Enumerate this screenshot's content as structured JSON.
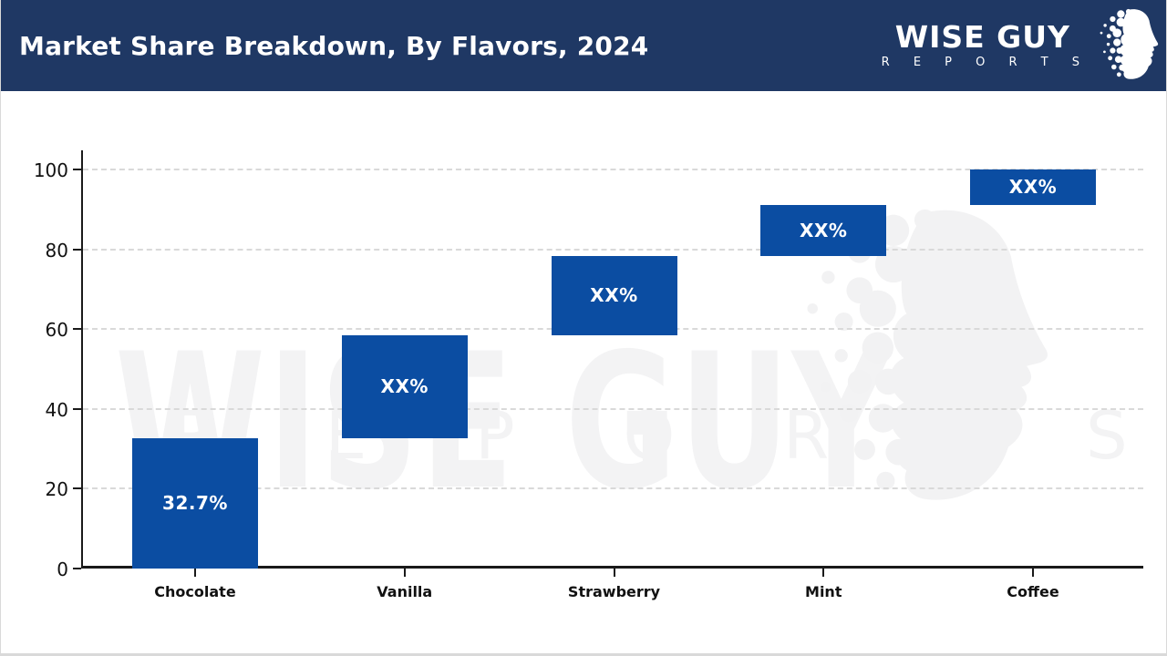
{
  "header": {
    "title": "Market Share Breakdown, By Flavors, 2024",
    "logo": {
      "line1": "WISE GUY",
      "line2": "R E P O R T S"
    }
  },
  "watermark": {
    "line1": "WISE GUY",
    "line2": "R E P O R T S"
  },
  "colors": {
    "header_bg": "#1F3864",
    "bar": "#0B4DA2",
    "axis": "#1A1A1A",
    "grid": "#D9D9D9",
    "watermark": "#F3F3F4",
    "bar_label_text": "#FFFFFF",
    "title_text": "#FFFFFF"
  },
  "chart_data": {
    "type": "bar",
    "subtype": "waterfall",
    "title": "Market Share Breakdown, By Flavors, 2024",
    "categories": [
      "Chocolate",
      "Vanilla",
      "Strawberry",
      "Mint",
      "Coffee"
    ],
    "segments": [
      {
        "category": "Chocolate",
        "start": 0,
        "end": 32.7,
        "label": "32.7%"
      },
      {
        "category": "Vanilla",
        "start": 32.7,
        "end": 58.5,
        "label": "XX%"
      },
      {
        "category": "Strawberry",
        "start": 58.5,
        "end": 78.3,
        "label": "XX%"
      },
      {
        "category": "Mint",
        "start": 78.3,
        "end": 91.2,
        "label": "XX%"
      },
      {
        "category": "Coffee",
        "start": 91.2,
        "end": 100,
        "label": "XX%"
      }
    ],
    "y_ticks": [
      0,
      20,
      40,
      60,
      80,
      100
    ],
    "ylim": [
      0,
      100
    ],
    "xlabel": "",
    "ylabel": "",
    "grid": "dashed-horizontal",
    "legend": "none"
  }
}
